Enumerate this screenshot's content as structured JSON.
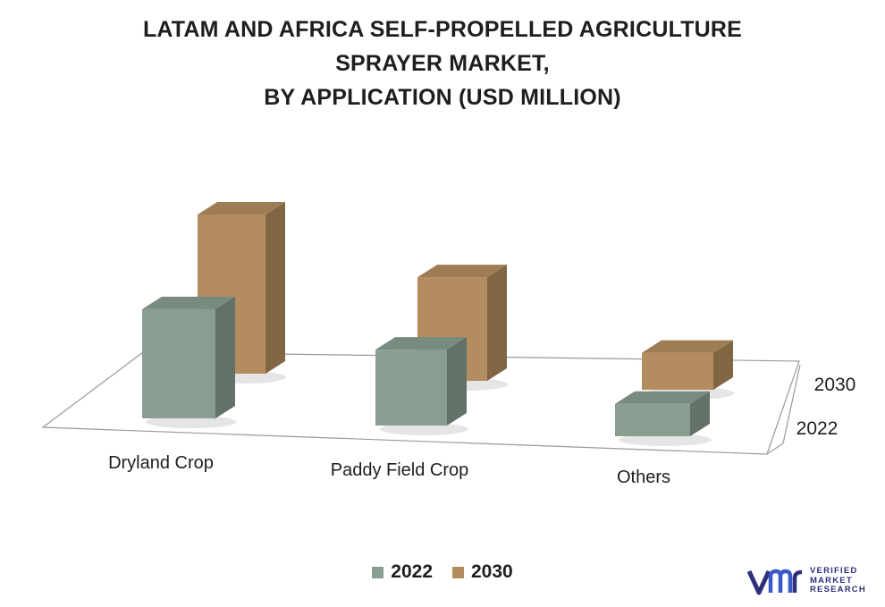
{
  "title_lines": [
    "LATAM AND AFRICA SELF-PROPELLED AGRICULTURE",
    "SPRAYER MARKET,",
    "BY APPLICATION (USD MILLION)"
  ],
  "chart_data": {
    "type": "bar",
    "style": "3d-clustered-columns",
    "title": "LATAM AND AFRICA SELF-PROPELLED AGRICULTURE SPRAYER MARKET, BY APPLICATION (USD MILLION)",
    "categories": [
      "Dryland Crop",
      "Paddy Field Crop",
      "Others"
    ],
    "depth_labels": [
      "2022",
      "2030"
    ],
    "series": [
      {
        "name": "2022",
        "color": "#889e90",
        "values": [
          118,
          82,
          35
        ]
      },
      {
        "name": "2030",
        "color": "#b38d5f",
        "values": [
          172,
          112,
          40
        ]
      }
    ],
    "grid": false,
    "legend_position": "bottom-center"
  },
  "legend": {
    "items": [
      {
        "label": "2022",
        "color": "#889e90"
      },
      {
        "label": "2030",
        "color": "#b38d5f"
      }
    ]
  },
  "logo": {
    "mark": "vmr",
    "lines": [
      "VERIFIED",
      "MARKET",
      "RESEARCH"
    ],
    "registered": "®"
  }
}
